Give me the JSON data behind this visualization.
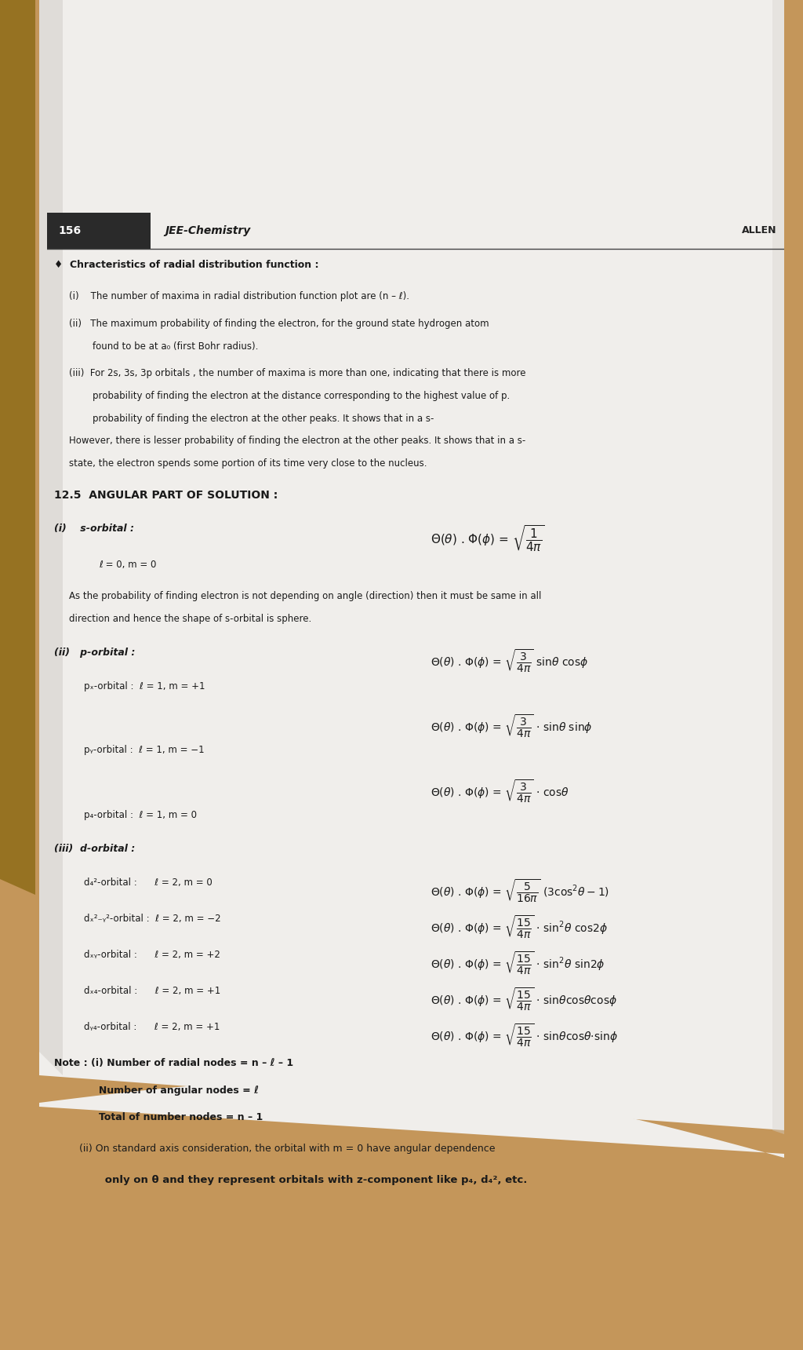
{
  "wood_color": "#c8a86b",
  "paper_color": "#f0eeeb",
  "paper_color2": "#e8e6e2",
  "text_color": "#1a1a1a",
  "header_box_color": "#2a2a2a",
  "title_num": "156",
  "title_text": "JEE-Chemistry",
  "allen_text": "ALLEN",
  "section_header": "Chracteristics of radial distribution function :",
  "bp1": "(i)    The number of maxima in radial distribution function plot are (n – ℓ).",
  "bp2a": "(ii)   The maximum probability of finding the electron, for the ground state hydrogen atom",
  "bp2b": "        found to be at a₀ (first Bohr radius).",
  "bp3a": "(iii)  For 2s, 3s, 3p orbitals , the number of maxima is more than one, indicating that there is more",
  "bp3b": "        probability of finding the electron at the distance corresponding to the highest value of p.",
  "bp3c": "        probability of finding the electron at the other peaks. It shows that in a s-",
  "however_a": "However, there is lesser probability of finding the electron at the other peaks. It shows that in a s-",
  "however_b": "state, the electron spends some portion of its time very close to the nucleus.",
  "section_title": "12.5  ANGULAR PART OF SOLUTION :",
  "s_label": "(i)    s-orbital :",
  "s_quantum": "ℓ = 0, m = 0",
  "s_desc1": "As the probability of finding electron is not depending on angle (direction) then it must be same in all",
  "s_desc2": "direction and hence the shape of s-orbital is sphere.",
  "p_label": "(ii)   p-orbital :",
  "px_label": "pₓ-orbital :  ℓ = 1, m = +1",
  "py_label": "pᵧ-orbital :  ℓ = 1, m = −1",
  "pz_label": "p₄-orbital :  ℓ = 1, m = 0",
  "d_label": "(iii)  d-orbital :",
  "dz2_label": "d₄²-orbital :      ℓ = 2, m = 0",
  "dx2y2_label": "dₓ²₋ᵧ²-orbital :  ℓ = 2, m = −2",
  "dxy_label": "dₓᵧ-orbital :      ℓ = 2, m = +2",
  "dxz_label": "dₓ₄-orbital :      ℓ = 2, m = +1",
  "dyz_label": "dᵧ₄-orbital :      ℓ = 2, m = +1",
  "note1": "Note : (i) Number of radial nodes = n – ℓ – 1",
  "note2": "             Number of angular nodes = ℓ",
  "note3": "             Total of number nodes = n – 1",
  "note4": "        (ii) On standard axis consideration, the orbital with m = 0 have angular dependence",
  "note5": "              only on θ and they represent orbitals with z-component like p₄, d₄², etc."
}
